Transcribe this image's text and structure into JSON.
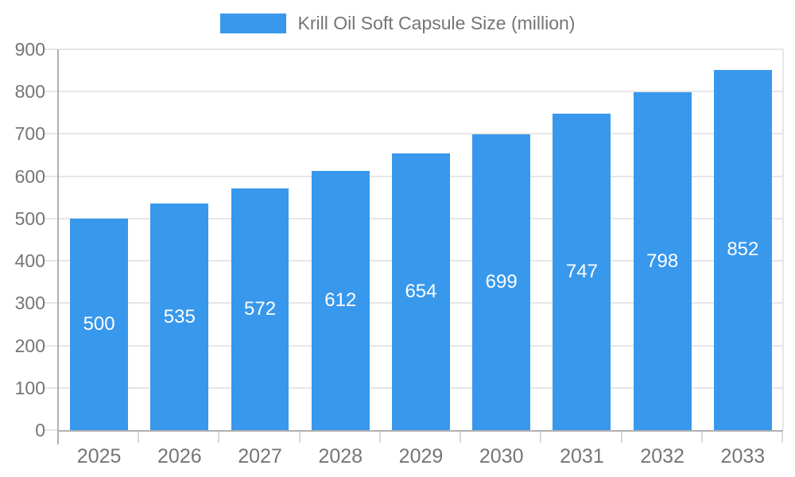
{
  "legend": {
    "label": "Krill Oil Soft Capsule Size (million)",
    "swatch_color": "#3898EC"
  },
  "chart_data": {
    "type": "bar",
    "title": "Krill Oil Soft Capsule Size (million)",
    "categories": [
      "2025",
      "2026",
      "2027",
      "2028",
      "2029",
      "2030",
      "2031",
      "2032",
      "2033"
    ],
    "values": [
      500,
      535,
      572,
      612,
      654,
      699,
      747,
      798,
      852
    ],
    "series": [
      {
        "name": "Krill Oil Soft Capsule Size (million)",
        "values": [
          500,
          535,
          572,
          612,
          654,
          699,
          747,
          798,
          852
        ]
      }
    ],
    "xlabel": "",
    "ylabel": "",
    "ylim": [
      0,
      900
    ],
    "ytick_step": 100,
    "yticks": [
      0,
      100,
      200,
      300,
      400,
      500,
      600,
      700,
      800,
      900
    ],
    "grid": true,
    "legend_position": "top",
    "bar_color": "#3898EC",
    "value_label_color": "#ffffff",
    "axis_text_color": "#757575",
    "axis_line_color": "#b0b0b0",
    "gridline_color": "#e6e6e6"
  }
}
